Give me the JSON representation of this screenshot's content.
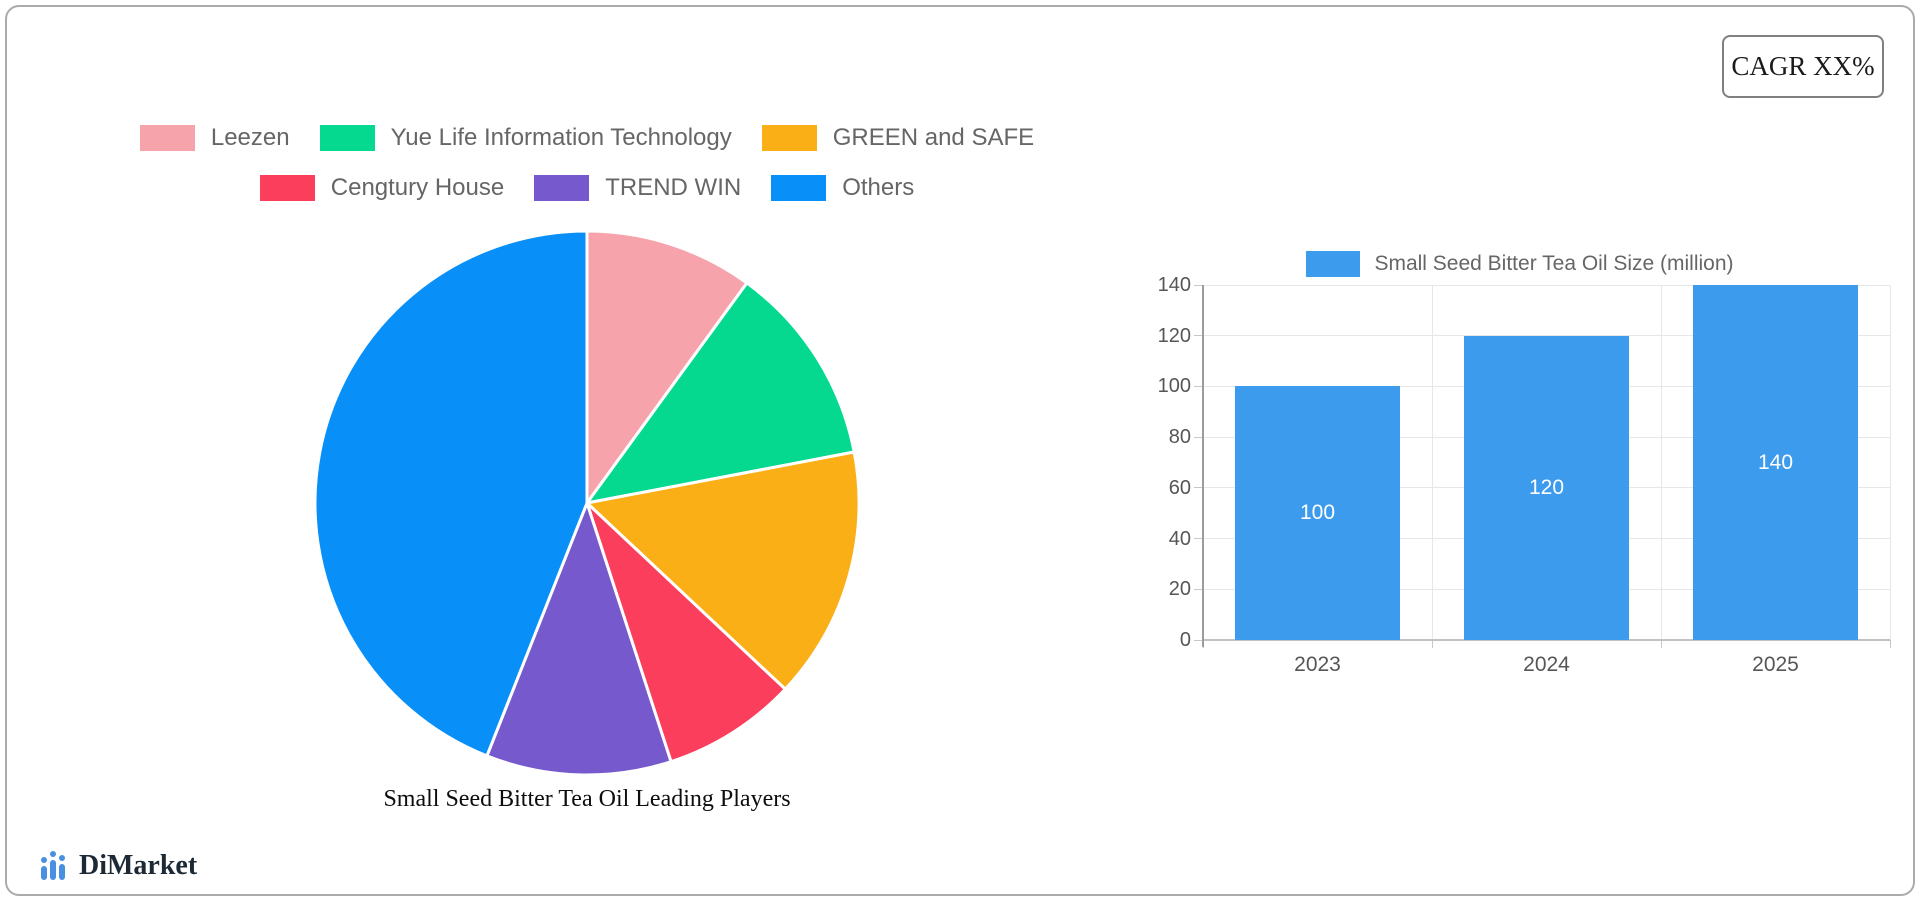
{
  "cagr_label": "CAGR XX%",
  "logo": {
    "text": "DiMarket"
  },
  "chart_data": [
    {
      "type": "pie",
      "title": "Small Seed Bitter Tea Oil Leading Players",
      "title_position": "bottom",
      "legend_position": "top",
      "labels": [
        "Leezen",
        "Yue Life Information Technology",
        "GREEN and SAFE",
        "Cengtury House",
        "TREND WIN",
        "Others"
      ],
      "values": [
        10,
        12,
        15,
        8,
        11,
        44
      ],
      "colors": [
        "#f7a3ab",
        "#04d98f",
        "#fbaf17",
        "#fa3e5c",
        "#7659cc",
        "#0990f8"
      ],
      "legend_rows": [
        [
          "Leezen",
          "Yue Life Information Technology",
          "GREEN and SAFE"
        ],
        [
          "Cengtury House",
          "TREND WIN",
          "Others"
        ]
      ],
      "slice_border_color": "#ffffff",
      "start_angle_deg": 0,
      "direction": "clockwise"
    },
    {
      "type": "bar",
      "legend_label": "Small Seed Bitter Tea Oil Size (million)",
      "legend_position": "top",
      "categories": [
        "2023",
        "2024",
        "2025"
      ],
      "values": [
        100,
        120,
        140
      ],
      "bar_color": "#3d9bee",
      "value_label_color": "#ffffff",
      "ylim": [
        0,
        140
      ],
      "ytick_step": 20,
      "yticks": [
        0,
        20,
        40,
        60,
        80,
        100,
        120,
        140
      ],
      "grid": true
    }
  ]
}
